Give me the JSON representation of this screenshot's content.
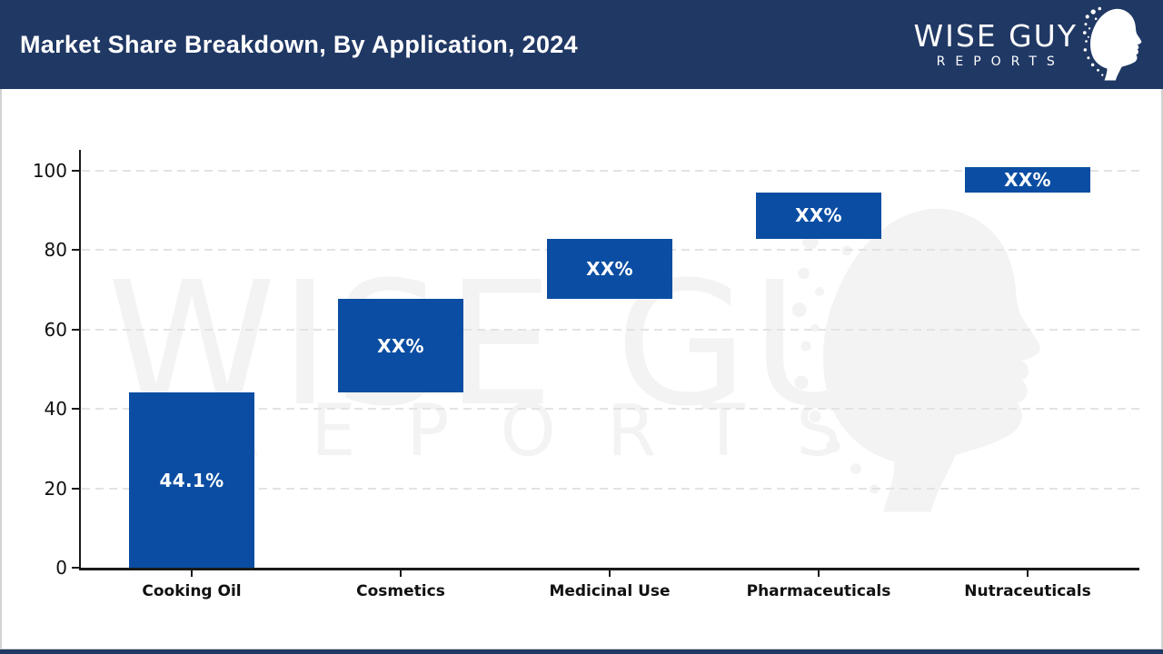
{
  "header": {
    "title": "Market Share Breakdown, By Application, 2024",
    "logo": {
      "line1": "WISE GUY",
      "line2": "REPORTS",
      "face_icon": "wiseguy-face"
    }
  },
  "watermark": {
    "line1": "WISE GUY",
    "line2": "REPORTS"
  },
  "colors": {
    "header_bg": "#203864",
    "bar": "#0b4da2",
    "grid": "#e3e3e3",
    "axis": "#1a1a1a",
    "bar_label": "#ffffff",
    "watermark": "#f3f3f3",
    "border": "#d2d2d2"
  },
  "chart_data": {
    "type": "bar",
    "subtype": "waterfall",
    "title": "Market Share Breakdown, By Application, 2024",
    "xlabel": "",
    "ylabel": "",
    "ylim": [
      0,
      105
    ],
    "yticks": [
      0,
      20,
      40,
      60,
      80,
      100
    ],
    "grid": "horizontal-dashed",
    "categories": [
      "Cooking Oil",
      "Cosmetics",
      "Medicinal Use",
      "Pharmaceuticals",
      "Nutraceuticals"
    ],
    "segments": [
      {
        "category": "Cooking Oil",
        "start": 0,
        "end": 44.1,
        "value": 44.1,
        "label": "44.1%"
      },
      {
        "category": "Cosmetics",
        "start": 44.1,
        "end": 67.6,
        "value": 23.5,
        "label": "XX%"
      },
      {
        "category": "Medicinal Use",
        "start": 67.6,
        "end": 82.8,
        "value": 15.2,
        "label": "XX%"
      },
      {
        "category": "Pharmaceuticals",
        "start": 82.8,
        "end": 94.5,
        "value": 11.7,
        "label": "XX%"
      },
      {
        "category": "Nutraceuticals",
        "start": 94.5,
        "end": 100.9,
        "value": 6.4,
        "label": "XX%"
      }
    ]
  }
}
